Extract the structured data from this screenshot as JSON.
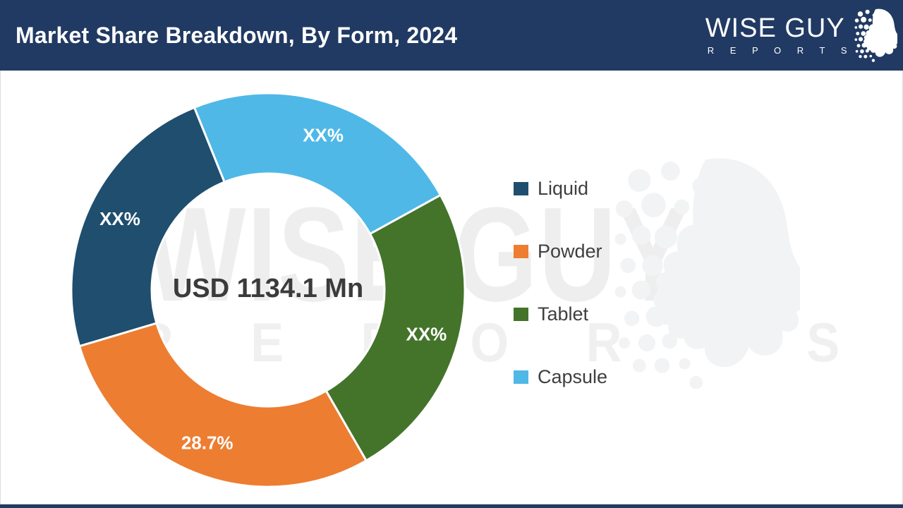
{
  "logo": {
    "line1": "WISE GUY",
    "line2": "R E P O R T S"
  },
  "watermark": {
    "line1": "WISE GUY",
    "line2": "R E P O R T S"
  },
  "colors": {
    "header_bg": "#213a63",
    "footer_bg": "#213a63",
    "center_text": "#3b3b3b",
    "legend_text": "#3f3f3f",
    "slice_divider": "#ffffff",
    "watermark_gray": "#eeeeee"
  },
  "chart_data": {
    "type": "pie",
    "subtype": "donut",
    "title": "Market Share Breakdown, By Form, 2024",
    "center_label": "USD 1134.1 Mn",
    "categories": [
      "Liquid",
      "Powder",
      "Tablet",
      "Capsule"
    ],
    "values": [
      23.5,
      28.7,
      24.7,
      23.1
    ],
    "slice_labels": [
      "XX%",
      "28.7%",
      "XX%",
      "XX%"
    ],
    "colors": [
      "#1f4e6e",
      "#ed7d31",
      "#43742a",
      "#4fb8e6"
    ],
    "start_angle_deg": 112,
    "direction": "counterclockwise",
    "legend_position": "right",
    "units": "percent of market share"
  },
  "legend": {
    "items": [
      {
        "label": "Liquid",
        "color": "#1f4e6e"
      },
      {
        "label": "Powder",
        "color": "#ed7d31"
      },
      {
        "label": "Tablet",
        "color": "#43742a"
      },
      {
        "label": "Capsule",
        "color": "#4fb8e6"
      }
    ]
  }
}
